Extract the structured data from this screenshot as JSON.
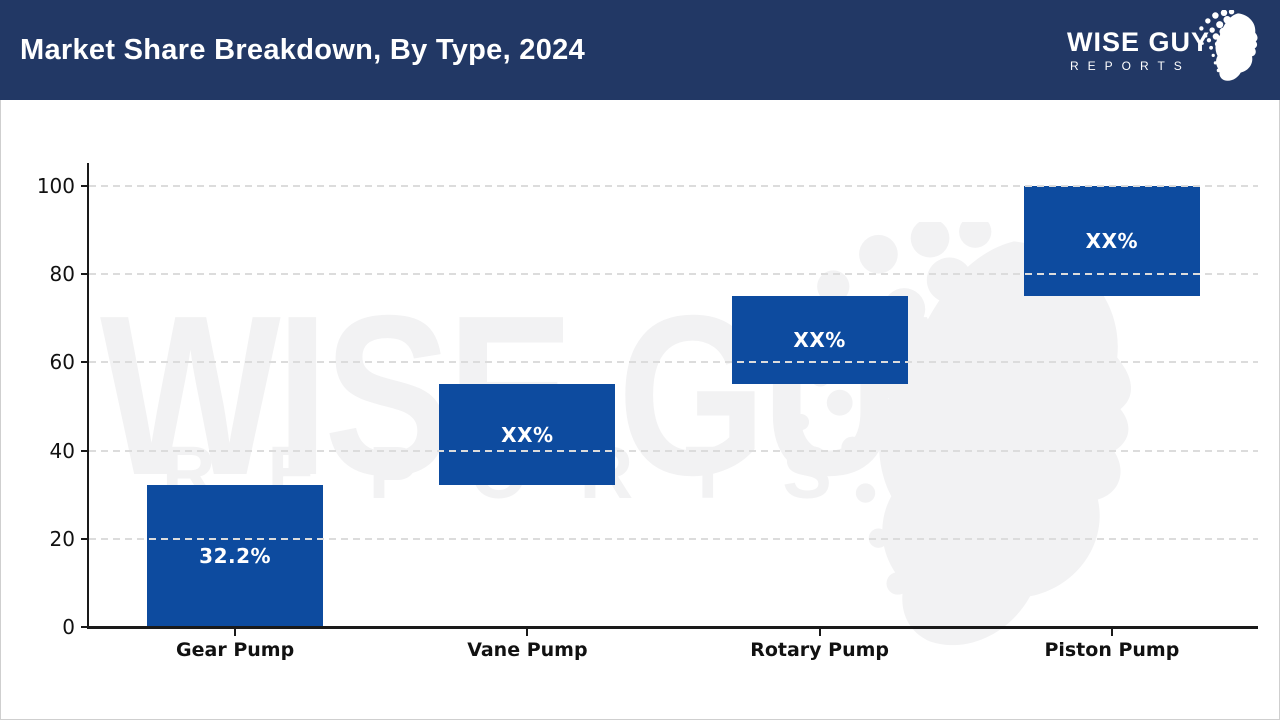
{
  "header": {
    "title": "Market Share Breakdown, By Type, 2024",
    "logo": {
      "line1": "WISE GUY",
      "line2": "REPORTS"
    }
  },
  "watermark": {
    "line1": "WISE GUY",
    "line2": "REPORTS"
  },
  "colors": {
    "header_bg": "#223865",
    "bar": "#0d4b9f",
    "bar_label": "#ffffff",
    "axis": "#1a1a1a",
    "grid": "#dcdcdc",
    "watermark": "#f2f2f3",
    "page_border": "#cfcfcf"
  },
  "chart_data": {
    "type": "bar",
    "subtype": "waterfall",
    "title": "Market Share Breakdown, By Type, 2024",
    "categories": [
      "Gear Pump",
      "Vane Pump",
      "Rotary Pump",
      "Piston Pump"
    ],
    "bars": [
      {
        "category": "Gear Pump",
        "start": 0,
        "end": 32.2,
        "label": "32.2%"
      },
      {
        "category": "Vane Pump",
        "start": 32.2,
        "end": 55,
        "label": "XX%"
      },
      {
        "category": "Rotary Pump",
        "start": 55,
        "end": 75,
        "label": "XX%"
      },
      {
        "category": "Piston Pump",
        "start": 75,
        "end": 100,
        "label": "XX%"
      }
    ],
    "xlabel": "",
    "ylabel": "",
    "yticks": [
      0,
      20,
      40,
      60,
      80,
      100
    ],
    "ylim": [
      0,
      105
    ],
    "grid": "dashed-horizontal",
    "legend": "none",
    "bar_color": "#0d4b9f",
    "label_color": "#ffffff"
  }
}
